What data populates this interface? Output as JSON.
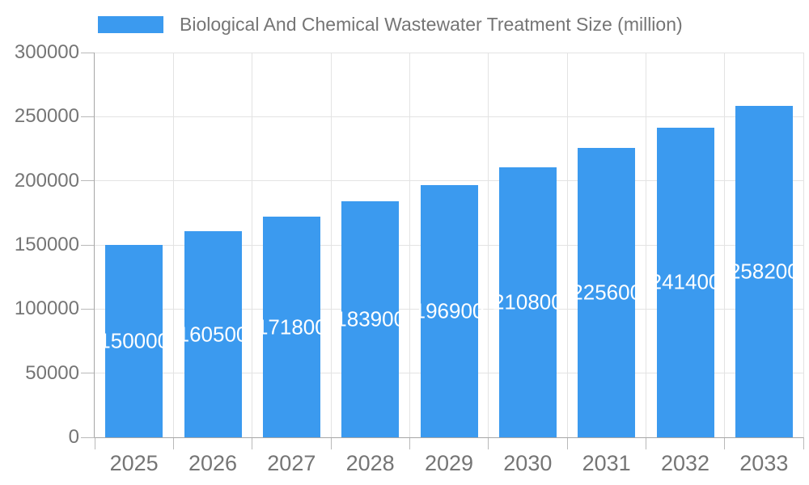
{
  "legend": {
    "label": "Biological And Chemical Wastewater Treatment Size (million)"
  },
  "chart_data": {
    "type": "bar",
    "title": "Biological And Chemical Wastewater Treatment Size (million)",
    "categories": [
      "2025",
      "2026",
      "2027",
      "2028",
      "2029",
      "2030",
      "2031",
      "2032",
      "2033"
    ],
    "values": [
      150000,
      160500,
      171800,
      183900,
      196900,
      210800,
      225600,
      241400,
      258200
    ],
    "series": [
      {
        "name": "Biological And Chemical Wastewater Treatment Size (million)",
        "values": [
          150000,
          160500,
          171800,
          183900,
          196900,
          210800,
          225600,
          241400,
          258200
        ]
      }
    ],
    "xlabel": "",
    "ylabel": "",
    "ylim": [
      0,
      300000
    ],
    "ytick_interval": 50000,
    "yticks": [
      0,
      50000,
      100000,
      150000,
      200000,
      250000,
      300000
    ],
    "grid": true,
    "legend_position": "top-left",
    "bar_labels_inside": true,
    "colors": {
      "bar": "#3B9AEF",
      "bar_label_text": "#FFFFFF",
      "grid_line": "#E3E3E3",
      "axis_line": "#A6A6A6",
      "tick_mark": "#B9B9B9",
      "axis_text": "#757575",
      "title_text": "#757575",
      "background": "#FFFFFF"
    }
  }
}
